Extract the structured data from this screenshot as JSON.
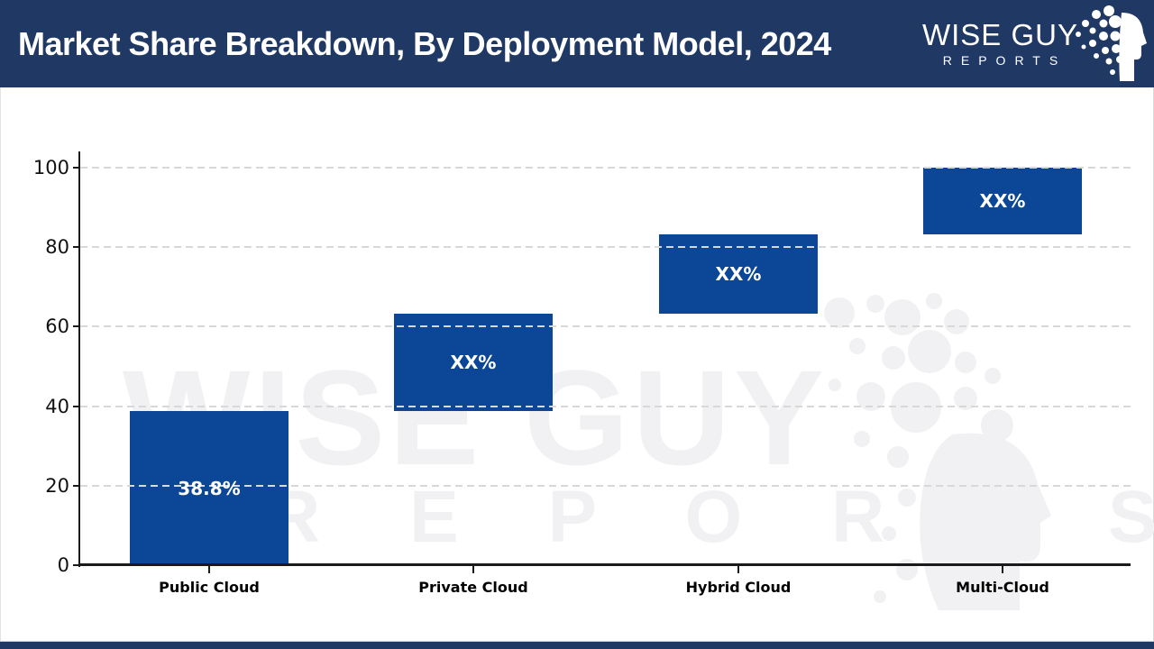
{
  "header": {
    "bg_color": "#203864",
    "title": "Market Share Breakdown, By Deployment Model, 2024",
    "logo": {
      "line1": "WISE GUY",
      "line2": "REPORTS"
    }
  },
  "watermark": {
    "line1": "WISE GUY",
    "line2": "R E P O R T S"
  },
  "footer": {
    "bg_color": "#203864"
  },
  "chart_data": {
    "type": "bar",
    "subtype": "waterfall",
    "title": "",
    "xlabel": "",
    "ylabel": "",
    "categories": [
      "Public Cloud",
      "Private Cloud",
      "Hybrid Cloud",
      "Multi-Cloud"
    ],
    "segments": [
      {
        "category": "Public Cloud",
        "start": 0,
        "end": 38.8,
        "label": "38.8%"
      },
      {
        "category": "Private Cloud",
        "start": 38.8,
        "end": 63.3,
        "label": "XX%"
      },
      {
        "category": "Hybrid Cloud",
        "start": 63.3,
        "end": 83.3,
        "label": "XX%"
      },
      {
        "category": "Multi-Cloud",
        "start": 83.3,
        "end": 100,
        "label": "XX%"
      }
    ],
    "y_ticks": [
      0,
      20,
      40,
      60,
      80,
      100
    ],
    "ylim": [
      0,
      104
    ],
    "grid": "dashed-horizontal",
    "grid_above_bars": true,
    "legend": "none",
    "bar_color": "#0b4697",
    "bar_label_color": "#ffffff",
    "axis_color": "#1a1a1a",
    "grid_color": "#d8d8d8"
  }
}
